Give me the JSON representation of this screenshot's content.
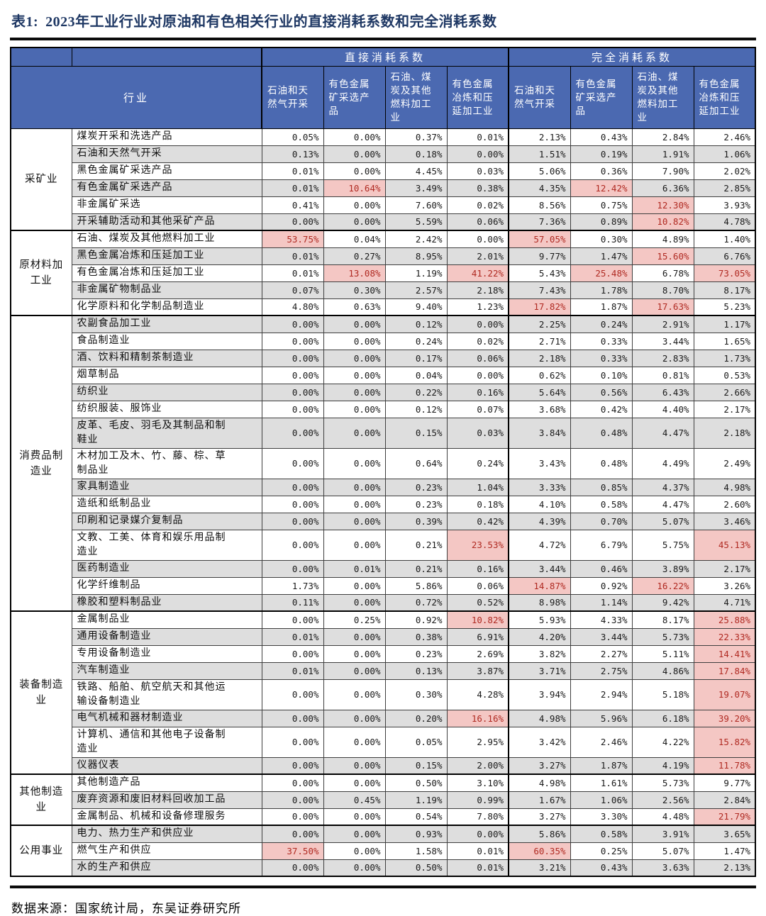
{
  "header": {
    "label": "表1:",
    "title": "2023年工业行业对原油和有色相关行业的直接消耗系数和完全消耗系数"
  },
  "footer": {
    "source": "数据来源：国家统计局，东吴证券研究所"
  },
  "colors": {
    "header_blue": "#4b69b1",
    "alt_row_gray": "#dedede",
    "highlight_bg": "#f4c7c4",
    "highlight_text": "#b02a22",
    "title_navy": "#1f3864"
  },
  "table": {
    "industry_label": "行业",
    "group_headers": [
      "直接消耗系数",
      "完全消耗系数"
    ],
    "sub_headers": [
      "石油和天\n然气开采",
      "有色金属\n矿采选产\n品",
      "石油、煤\n炭及其他\n燃料加工\n业",
      "有色金属\n冶炼和压\n延加工业"
    ],
    "highlight_threshold_pct": 10,
    "groups": [
      {
        "name": "采矿业",
        "rows": [
          {
            "industry": "煤炭开采和洗选产品",
            "direct": [
              "0.05%",
              "0.00%",
              "0.37%",
              "0.01%"
            ],
            "complete": [
              "2.13%",
              "0.43%",
              "2.84%",
              "2.46%"
            ]
          },
          {
            "industry": "石油和天然气开采",
            "direct": [
              "0.13%",
              "0.00%",
              "0.18%",
              "0.00%"
            ],
            "complete": [
              "1.51%",
              "0.19%",
              "1.91%",
              "1.06%"
            ]
          },
          {
            "industry": "黑色金属矿采选产品",
            "direct": [
              "0.01%",
              "0.00%",
              "4.45%",
              "0.03%"
            ],
            "complete": [
              "5.06%",
              "0.36%",
              "7.90%",
              "2.02%"
            ]
          },
          {
            "industry": "有色金属矿采选产品",
            "direct": [
              "0.01%",
              "10.64%",
              "3.49%",
              "0.38%"
            ],
            "complete": [
              "4.35%",
              "12.42%",
              "6.36%",
              "2.85%"
            ]
          },
          {
            "industry": "非金属矿采选",
            "direct": [
              "0.41%",
              "0.00%",
              "7.60%",
              "0.02%"
            ],
            "complete": [
              "8.56%",
              "0.75%",
              "12.30%",
              "3.93%"
            ]
          },
          {
            "industry": "开采辅助活动和其他采矿产品",
            "direct": [
              "0.00%",
              "0.00%",
              "5.59%",
              "0.06%"
            ],
            "complete": [
              "7.36%",
              "0.89%",
              "10.82%",
              "4.78%"
            ]
          }
        ]
      },
      {
        "name": "原材料加\n工业",
        "rows": [
          {
            "industry": "石油、煤炭及其他燃料加工业",
            "direct": [
              "53.75%",
              "0.04%",
              "2.42%",
              "0.00%"
            ],
            "complete": [
              "57.05%",
              "0.30%",
              "4.89%",
              "1.40%"
            ]
          },
          {
            "industry": "黑色金属冶炼和压延加工业",
            "direct": [
              "0.01%",
              "0.27%",
              "8.95%",
              "2.01%"
            ],
            "complete": [
              "9.77%",
              "1.47%",
              "15.60%",
              "6.76%"
            ]
          },
          {
            "industry": "有色金属冶炼和压延加工业",
            "direct": [
              "0.01%",
              "13.08%",
              "1.19%",
              "41.22%"
            ],
            "complete": [
              "5.43%",
              "25.48%",
              "6.78%",
              "73.05%"
            ]
          },
          {
            "industry": "非金属矿物制品业",
            "direct": [
              "0.07%",
              "0.30%",
              "2.57%",
              "2.18%"
            ],
            "complete": [
              "7.43%",
              "1.78%",
              "8.70%",
              "8.17%"
            ]
          },
          {
            "industry": "化学原料和化学制品制造业",
            "direct": [
              "4.80%",
              "0.63%",
              "9.40%",
              "1.23%"
            ],
            "complete": [
              "17.82%",
              "1.87%",
              "17.63%",
              "5.23%"
            ]
          }
        ]
      },
      {
        "name": "消费品制\n造业",
        "rows": [
          {
            "industry": "农副食品加工业",
            "direct": [
              "0.00%",
              "0.00%",
              "0.12%",
              "0.00%"
            ],
            "complete": [
              "2.25%",
              "0.24%",
              "2.91%",
              "1.17%"
            ]
          },
          {
            "industry": "食品制造业",
            "direct": [
              "0.00%",
              "0.00%",
              "0.24%",
              "0.02%"
            ],
            "complete": [
              "2.71%",
              "0.33%",
              "3.44%",
              "1.65%"
            ]
          },
          {
            "industry": "酒、饮料和精制茶制造业",
            "direct": [
              "0.00%",
              "0.00%",
              "0.17%",
              "0.06%"
            ],
            "complete": [
              "2.18%",
              "0.33%",
              "2.83%",
              "1.73%"
            ]
          },
          {
            "industry": "烟草制品",
            "direct": [
              "0.00%",
              "0.00%",
              "0.04%",
              "0.00%"
            ],
            "complete": [
              "0.62%",
              "0.10%",
              "0.81%",
              "0.53%"
            ]
          },
          {
            "industry": "纺织业",
            "direct": [
              "0.00%",
              "0.00%",
              "0.22%",
              "0.16%"
            ],
            "complete": [
              "5.64%",
              "0.56%",
              "6.43%",
              "2.66%"
            ]
          },
          {
            "industry": "纺织服装、服饰业",
            "direct": [
              "0.00%",
              "0.00%",
              "0.12%",
              "0.07%"
            ],
            "complete": [
              "3.68%",
              "0.42%",
              "4.40%",
              "2.17%"
            ]
          },
          {
            "industry": "皮革、毛皮、羽毛及其制品和制\n鞋业",
            "direct": [
              "0.00%",
              "0.00%",
              "0.15%",
              "0.03%"
            ],
            "complete": [
              "3.84%",
              "0.48%",
              "4.47%",
              "2.18%"
            ]
          },
          {
            "industry": "木材加工及木、竹、藤、棕、草\n制品业",
            "direct": [
              "0.00%",
              "0.00%",
              "0.64%",
              "0.24%"
            ],
            "complete": [
              "3.43%",
              "0.48%",
              "4.49%",
              "2.49%"
            ]
          },
          {
            "industry": "家具制造业",
            "direct": [
              "0.00%",
              "0.00%",
              "0.23%",
              "1.04%"
            ],
            "complete": [
              "3.33%",
              "0.85%",
              "4.37%",
              "4.98%"
            ]
          },
          {
            "industry": "造纸和纸制品业",
            "direct": [
              "0.00%",
              "0.00%",
              "0.23%",
              "0.18%"
            ],
            "complete": [
              "4.10%",
              "0.58%",
              "4.47%",
              "2.60%"
            ]
          },
          {
            "industry": "印刷和记录媒介复制品",
            "direct": [
              "0.00%",
              "0.00%",
              "0.39%",
              "0.42%"
            ],
            "complete": [
              "4.39%",
              "0.70%",
              "5.07%",
              "3.46%"
            ]
          },
          {
            "industry": "文教、工美、体育和娱乐用品制\n造业",
            "direct": [
              "0.00%",
              "0.00%",
              "0.21%",
              "23.53%"
            ],
            "complete": [
              "4.72%",
              "6.79%",
              "5.75%",
              "45.13%"
            ]
          },
          {
            "industry": "医药制造业",
            "direct": [
              "0.00%",
              "0.01%",
              "0.21%",
              "0.16%"
            ],
            "complete": [
              "3.44%",
              "0.46%",
              "3.89%",
              "2.17%"
            ]
          },
          {
            "industry": "化学纤维制品",
            "direct": [
              "1.73%",
              "0.00%",
              "5.86%",
              "0.06%"
            ],
            "complete": [
              "14.87%",
              "0.92%",
              "16.22%",
              "3.26%"
            ]
          },
          {
            "industry": "橡胶和塑料制品业",
            "direct": [
              "0.11%",
              "0.00%",
              "0.72%",
              "0.52%"
            ],
            "complete": [
              "8.98%",
              "1.14%",
              "9.42%",
              "4.71%"
            ]
          }
        ]
      },
      {
        "name": "装备制造\n业",
        "rows": [
          {
            "industry": "金属制品业",
            "direct": [
              "0.00%",
              "0.25%",
              "0.92%",
              "10.82%"
            ],
            "complete": [
              "5.93%",
              "4.33%",
              "8.17%",
              "25.88%"
            ]
          },
          {
            "industry": "通用设备制造业",
            "direct": [
              "0.01%",
              "0.00%",
              "0.38%",
              "6.91%"
            ],
            "complete": [
              "4.20%",
              "3.44%",
              "5.73%",
              "22.33%"
            ]
          },
          {
            "industry": "专用设备制造业",
            "direct": [
              "0.00%",
              "0.00%",
              "0.23%",
              "2.69%"
            ],
            "complete": [
              "3.82%",
              "2.27%",
              "5.11%",
              "14.41%"
            ]
          },
          {
            "industry": "汽车制造业",
            "direct": [
              "0.01%",
              "0.00%",
              "0.13%",
              "3.87%"
            ],
            "complete": [
              "3.71%",
              "2.75%",
              "4.86%",
              "17.84%"
            ]
          },
          {
            "industry": "铁路、船舶、航空航天和其他运\n输设备制造业",
            "direct": [
              "0.00%",
              "0.00%",
              "0.30%",
              "4.28%"
            ],
            "complete": [
              "3.94%",
              "2.94%",
              "5.18%",
              "19.07%"
            ]
          },
          {
            "industry": "电气机械和器材制造业",
            "direct": [
              "0.00%",
              "0.00%",
              "0.20%",
              "16.16%"
            ],
            "complete": [
              "4.98%",
              "5.96%",
              "6.18%",
              "39.20%"
            ]
          },
          {
            "industry": "计算机、通信和其他电子设备制\n造业",
            "direct": [
              "0.00%",
              "0.00%",
              "0.05%",
              "2.95%"
            ],
            "complete": [
              "3.42%",
              "2.46%",
              "4.22%",
              "15.82%"
            ]
          },
          {
            "industry": "仪器仪表",
            "direct": [
              "0.00%",
              "0.00%",
              "0.15%",
              "2.00%"
            ],
            "complete": [
              "3.27%",
              "1.87%",
              "4.19%",
              "11.78%"
            ]
          }
        ]
      },
      {
        "name": "其他制造\n业",
        "rows": [
          {
            "industry": "其他制造产品",
            "direct": [
              "0.00%",
              "0.00%",
              "0.50%",
              "3.10%"
            ],
            "complete": [
              "4.98%",
              "1.61%",
              "5.73%",
              "9.77%"
            ]
          },
          {
            "industry": "废弃资源和废旧材料回收加工品",
            "direct": [
              "0.00%",
              "0.45%",
              "1.19%",
              "0.99%"
            ],
            "complete": [
              "1.67%",
              "1.06%",
              "2.56%",
              "2.84%"
            ]
          },
          {
            "industry": "金属制品、机械和设备修理服务",
            "direct": [
              "0.00%",
              "0.00%",
              "0.54%",
              "7.80%"
            ],
            "complete": [
              "3.27%",
              "3.30%",
              "4.48%",
              "21.79%"
            ]
          }
        ]
      },
      {
        "name": "公用事业",
        "rows": [
          {
            "industry": "电力、热力生产和供应业",
            "direct": [
              "0.00%",
              "0.00%",
              "0.93%",
              "0.00%"
            ],
            "complete": [
              "5.86%",
              "0.58%",
              "3.91%",
              "3.65%"
            ]
          },
          {
            "industry": "燃气生产和供应",
            "direct": [
              "37.50%",
              "0.00%",
              "1.58%",
              "0.01%"
            ],
            "complete": [
              "60.35%",
              "0.25%",
              "5.07%",
              "1.47%"
            ]
          },
          {
            "industry": "水的生产和供应",
            "direct": [
              "0.00%",
              "0.00%",
              "0.50%",
              "0.01%"
            ],
            "complete": [
              "3.21%",
              "0.43%",
              "3.63%",
              "2.13%"
            ]
          }
        ]
      }
    ]
  }
}
